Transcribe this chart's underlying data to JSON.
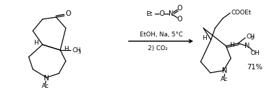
{
  "background": "#ffffff",
  "line_color": "#000000",
  "text_color": "#000000",
  "figsize": [
    4.0,
    1.53
  ],
  "dpi": 100,
  "conditions_line1": "EtOH, Na, 5°C",
  "conditions_line2": "2) CO₂",
  "yield_text": "71%"
}
